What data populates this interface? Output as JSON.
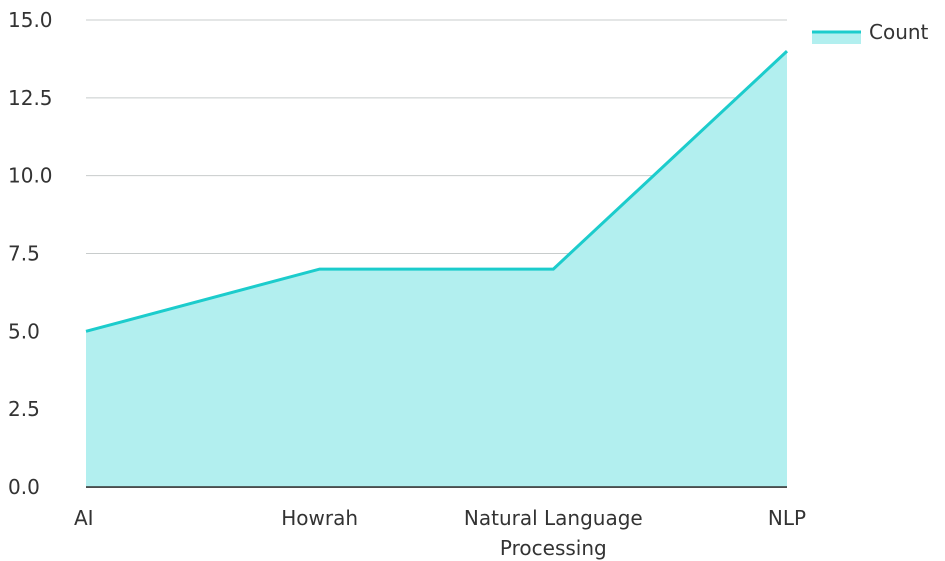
{
  "chart_data": {
    "type": "area",
    "categories": [
      "AI",
      "Howrah",
      "Natural Language Processing",
      "NLP"
    ],
    "category_lines": [
      [
        "AI"
      ],
      [
        "Howrah"
      ],
      [
        "Natural Language",
        "Processing"
      ],
      [
        "NLP"
      ]
    ],
    "series": [
      {
        "name": "Count",
        "values": [
          5,
          7,
          7,
          14
        ]
      }
    ],
    "ylim": [
      0,
      15
    ],
    "yticks": [
      "0.0",
      "2.5",
      "5.0",
      "7.5",
      "10.0",
      "12.5",
      "15.0"
    ],
    "grid": true,
    "legend_position": "top-right",
    "colors": {
      "line": "#1ccccc",
      "fill": "#b2efef",
      "grid": "#c8cccc",
      "text": "#333333"
    }
  }
}
